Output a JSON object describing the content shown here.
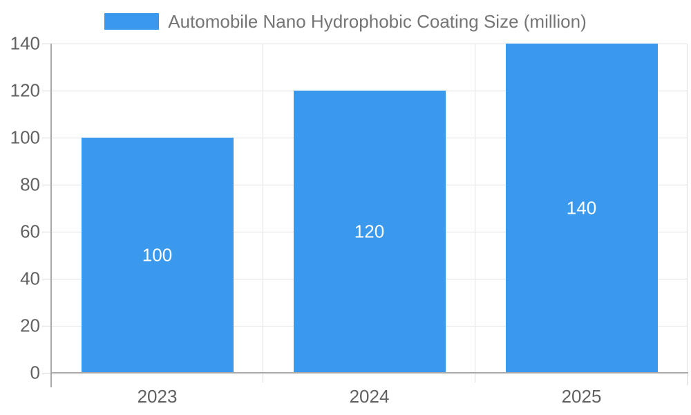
{
  "chart_data": {
    "type": "bar",
    "title": "Automobile Nano Hydrophobic Coating Size (million)",
    "categories": [
      "2023",
      "2024",
      "2025"
    ],
    "series": [
      {
        "name": "Automobile Nano Hydrophobic Coating Size (million)",
        "values": [
          100,
          120,
          140
        ]
      }
    ],
    "bar_value_labels": [
      "100",
      "120",
      "140"
    ],
    "xlabel": "",
    "ylabel": "",
    "ylim": [
      0,
      140
    ],
    "yticks": [
      0,
      20,
      40,
      60,
      80,
      100,
      120,
      140
    ],
    "grid": true,
    "legend_position": "top-center",
    "colors": {
      "bar": "#3A99EC",
      "bar_label_text": "#FFFFFF",
      "axis_text": "#616161",
      "legend_text": "#757575",
      "gridline": "#E0E0E0",
      "tick": "#D9D9D9",
      "axis_line": "#A9A9A9",
      "background": "#FFFFFF"
    }
  }
}
